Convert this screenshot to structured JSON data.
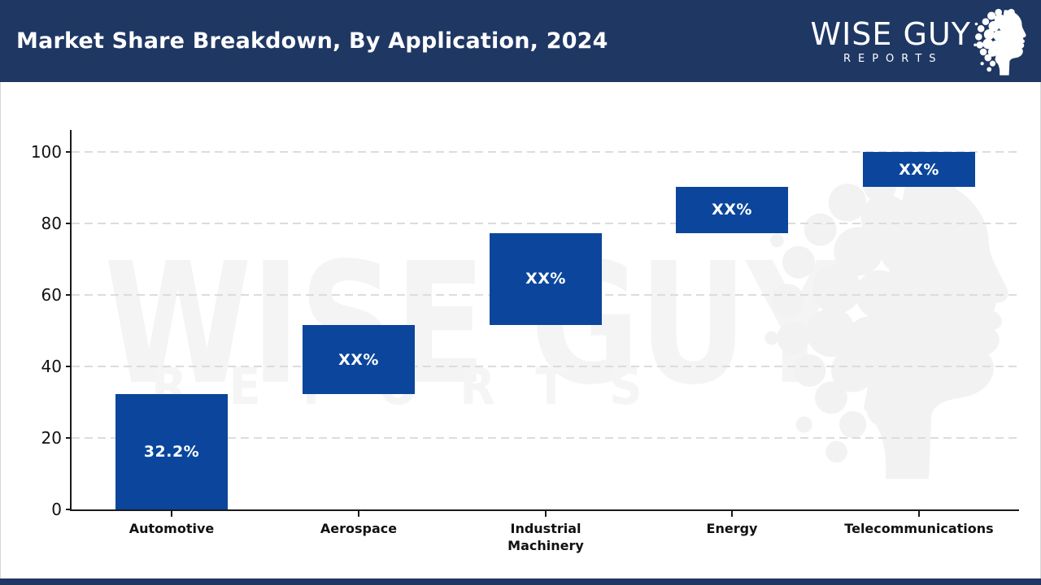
{
  "header": {
    "title": "Market Share Breakdown, By Application, 2024",
    "logo": {
      "line1": "WISE GUY",
      "line2": "REPORTS"
    }
  },
  "watermark": {
    "line1": "WISE GUY",
    "line2": "REPORTS"
  },
  "colors": {
    "header_bg": "#1f3763",
    "bar": "#0b469c",
    "grid": "#dcdcdc",
    "axis": "#1a1a1a",
    "bar_label_text": "#ffffff",
    "watermark": "#f2f2f2"
  },
  "chart_data": {
    "type": "bar",
    "subtype": "waterfall-floating-bars",
    "title": "Market Share Breakdown, By Application, 2024",
    "categories": [
      "Automotive",
      "Aerospace",
      "Industrial Machinery",
      "Energy",
      "Telecommunications"
    ],
    "category_label_lines": [
      [
        "Automotive"
      ],
      [
        "Aerospace"
      ],
      [
        "Industrial",
        "Machinery"
      ],
      [
        "Energy"
      ],
      [
        "Telecommunications"
      ]
    ],
    "series": [
      {
        "name": "Market Share (%)",
        "segments": [
          {
            "category": "Automotive",
            "start": 0,
            "end": 32.2,
            "increment": 32.2,
            "label": "32.2%"
          },
          {
            "category": "Aerospace",
            "start": 32.2,
            "end": 51.6,
            "increment": 19.4,
            "label": "XX%"
          },
          {
            "category": "Industrial Machinery",
            "start": 51.6,
            "end": 77.3,
            "increment": 25.7,
            "label": "XX%"
          },
          {
            "category": "Energy",
            "start": 77.3,
            "end": 90.2,
            "increment": 12.9,
            "label": "XX%"
          },
          {
            "category": "Telecommunications",
            "start": 90.2,
            "end": 100,
            "increment": 9.8,
            "label": "XX%"
          }
        ]
      }
    ],
    "xlabel": "",
    "ylabel": "",
    "ylim": [
      0,
      100
    ],
    "yticks": [
      0,
      20,
      40,
      60,
      80,
      100
    ],
    "grid": "horizontal-dashed",
    "legend": "none"
  }
}
